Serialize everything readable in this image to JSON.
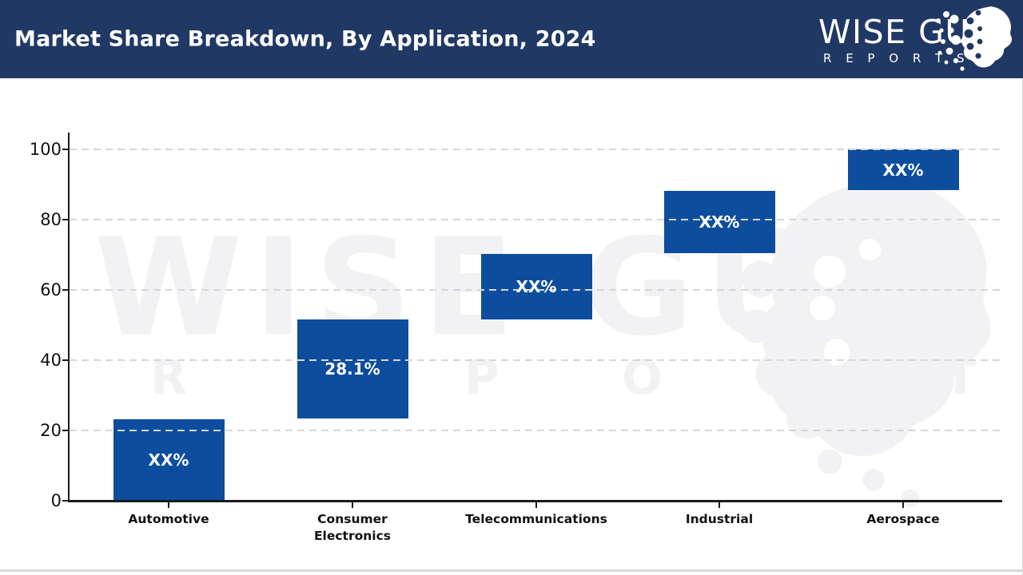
{
  "header": {
    "title": "Market Share Breakdown, By Application, 2024",
    "logo": {
      "brand_line1": "WISE GUY",
      "brand_line2": "R E P O R T S"
    }
  },
  "watermark": {
    "line1": "WISE GUY",
    "line2": "R E P O R T S"
  },
  "colors": {
    "header_bg": "#203864",
    "bar": "#0d4d9e",
    "bar_label": "#ffffff",
    "gridline": "#d7d7d9",
    "axis": "#1a1a1a"
  },
  "chart_data": {
    "type": "bar",
    "variant": "floating-waterfall-segments",
    "title": "Market Share Breakdown, By Application, 2024",
    "xlabel": "",
    "ylabel": "",
    "ylim": [
      0,
      104
    ],
    "yticks": [
      0,
      20,
      40,
      60,
      80,
      100
    ],
    "grid": "horizontal-dashed, drawn over bars",
    "legend": "none",
    "categories": [
      "Automotive",
      "Consumer\nElectronics",
      "Telecommunications",
      "Industrial",
      "Aerospace"
    ],
    "bars": [
      {
        "category": "Automotive",
        "start": 0,
        "end": 23.2,
        "height": 23.2,
        "label": "XX%"
      },
      {
        "category": "Consumer Electronics",
        "start": 23.4,
        "end": 51.5,
        "height": 28.1,
        "label": "28.1%"
      },
      {
        "category": "Telecommunications",
        "start": 51.6,
        "end": 70.2,
        "height": 18.6,
        "label": "XX%"
      },
      {
        "category": "Industrial",
        "start": 70.4,
        "end": 88.1,
        "height": 17.7,
        "label": "XX%"
      },
      {
        "category": "Aerospace",
        "start": 88.2,
        "end": 99.8,
        "height": 11.6,
        "label": "XX%"
      }
    ]
  }
}
